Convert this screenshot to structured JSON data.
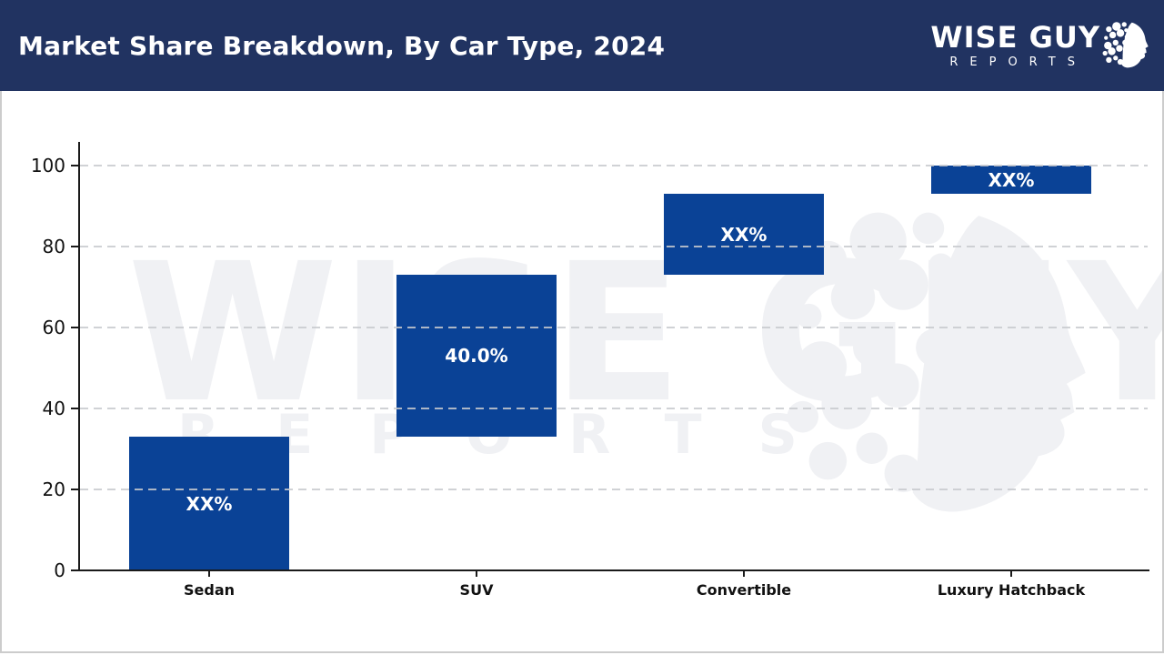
{
  "header": {
    "title": "Market Share Breakdown, By Car Type, 2024",
    "background": "#213361",
    "logo": {
      "name": "Wise Guy Reports",
      "line1": "WISE GUY",
      "line2": "REPORTS"
    }
  },
  "watermark": {
    "line1": "WISE GUY",
    "line2": "REPORTS"
  },
  "chart_data": {
    "type": "bar",
    "subtype": "waterfall",
    "title": "Market Share Breakdown, By Car Type, 2024",
    "categories": [
      "Sedan",
      "SUV",
      "Convertible",
      "Luxury Hatchback"
    ],
    "segments": [
      {
        "category": "Sedan",
        "start": 0,
        "end": 33,
        "value": 33,
        "label": "XX%"
      },
      {
        "category": "SUV",
        "start": 33,
        "end": 73,
        "value": 40,
        "label": "40.0%"
      },
      {
        "category": "Convertible",
        "start": 73,
        "end": 93,
        "value": 20,
        "label": "XX%"
      },
      {
        "category": "Luxury Hatchback",
        "start": 93,
        "end": 100,
        "value": 7,
        "label": "XX%"
      }
    ],
    "ylim": [
      0,
      100
    ],
    "yticks": [
      0,
      20,
      40,
      60,
      80,
      100
    ],
    "xlabel": "",
    "ylabel": "",
    "grid": true,
    "grid_style": "dashed",
    "legend": false,
    "bar_color": "#0a4296",
    "bar_label_color": "#ffffff",
    "axis_color": "#1a1a1a",
    "grid_color": "#dedede",
    "watermark_color": "#f0f1f4"
  }
}
